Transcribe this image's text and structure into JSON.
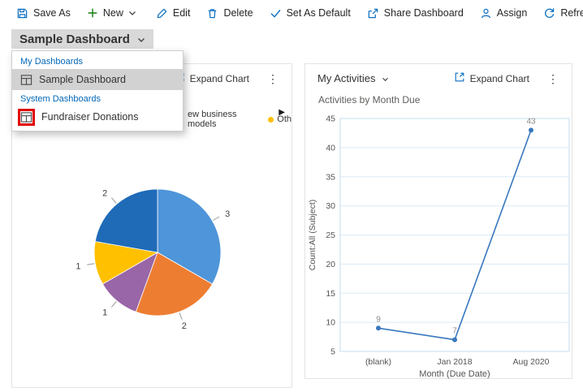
{
  "toolbar": {
    "buttons": [
      {
        "label": "Save As",
        "icon": "save-icon"
      },
      {
        "label": "New",
        "icon": "plus-icon"
      },
      {
        "label": "Edit",
        "icon": "pencil-icon"
      },
      {
        "label": "Delete",
        "icon": "trash-icon"
      },
      {
        "label": "Set As Default",
        "icon": "check-icon"
      },
      {
        "label": "Share Dashboard",
        "icon": "share-icon"
      },
      {
        "label": "Assign",
        "icon": "person-icon"
      },
      {
        "label": "Refresh All",
        "icon": "refresh-icon"
      }
    ]
  },
  "dashboard_selector": {
    "label": "Sample Dashboard"
  },
  "dropdown": {
    "group1_header": "My Dashboards",
    "item1": "Sample Dashboard",
    "group2_header": "System Dashboards",
    "item2": "Fundraiser Donations",
    "annotation_color": "#e10000"
  },
  "left_card": {
    "expand_label": "Expand Chart",
    "menu_glyph": "⋮",
    "legend_item1": "ew business models",
    "legend_item2": "Oth",
    "legend_item2_color": "#FFC000",
    "scroll_arrow": "▶"
  },
  "right_card": {
    "title": "My Activities",
    "expand_label": "Expand Chart",
    "menu_glyph": "⋮",
    "chart_title": "Activities by Month Due"
  },
  "chart_data": [
    {
      "type": "pie",
      "title": "",
      "values": [
        3,
        2,
        1,
        1,
        2
      ],
      "labels": [
        "3",
        "2",
        "1",
        "1",
        "2"
      ],
      "colors": [
        "#4E95D9",
        "#ED7D31",
        "#9966A8",
        "#FFC000",
        "#1F6BB8"
      ],
      "start_angle": 0,
      "legend_visible": [
        "ew business models",
        "Oth"
      ]
    },
    {
      "type": "line",
      "title": "Activities by Month Due",
      "categories": [
        "(blank)",
        "Jan 2018",
        "Aug 2020"
      ],
      "values": [
        9,
        7,
        43
      ],
      "xlabel": "Month (Due Date)",
      "ylabel": "Count:All (Subject)",
      "ylim": [
        5,
        45
      ],
      "ytick_step": 5,
      "line_color": "#3878BD",
      "grid": true,
      "data_labels": true
    }
  ]
}
